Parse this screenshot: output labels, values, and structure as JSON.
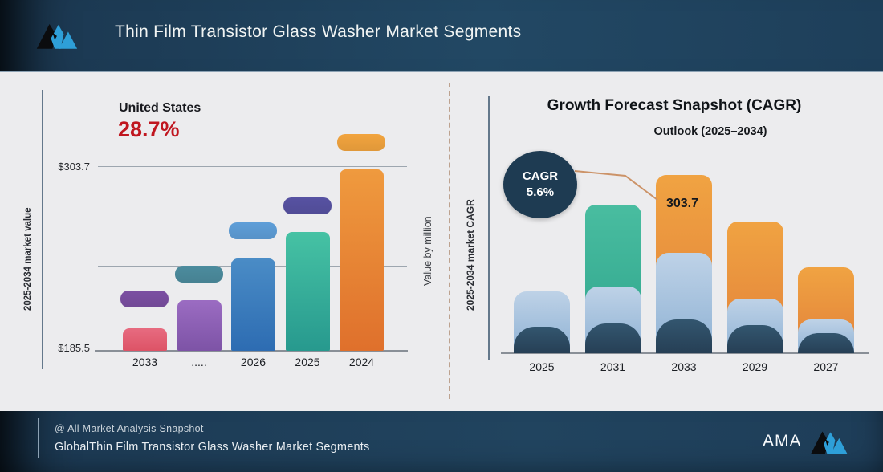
{
  "header": {
    "title": "Thin Film Transistor Glass Washer Market Segments",
    "logo": "AMA mountain logo"
  },
  "left_panel": {
    "country_label": "United States",
    "country_value": "28.7%",
    "y_axis_title": "2025-2034 market value",
    "tick_top": "$303.7",
    "tick_bottom": "$185.5",
    "secondary_axis_title": "Value by million"
  },
  "right_panel": {
    "title": "Growth Forecast Snapshot (CAGR)",
    "subtitle": "Outlook (2025–2034)",
    "y_axis_title": "2025-2034 market CAGR",
    "badge_title": "CAGR",
    "badge_value": "5.6%",
    "peak_label": "303.7"
  },
  "footer": {
    "credit": "@ All Market Analysis Snapshot",
    "caption": "GlobalThin Film Transistor Glass Washer Market Segments",
    "brand": "AMA"
  },
  "colors": {
    "background_navy": "#1f3d57",
    "panel_gray": "#ececee",
    "accent_red": "#c0161f",
    "accent_orange": "#e8883c",
    "accent_teal": "#3cb49a",
    "badge_navy": "#1e3b52",
    "logo_blue": "#2e9fd8",
    "connector_tan": "#cc9368"
  },
  "chart_data": [
    {
      "type": "bar",
      "title": "United States 2025-2034 market value",
      "highlight": {
        "label": "United States",
        "value": "28.7%"
      },
      "categories": [
        "2033",
        ".....",
        "2026",
        "2025",
        "2024"
      ],
      "values": [
        200,
        218,
        245,
        262,
        302
      ],
      "cap_values": [
        224,
        240,
        268,
        284,
        325
      ],
      "unit": "USD million (read from axis)",
      "ylabel": "2025-2034 market value",
      "xlabel": "",
      "yticks": [
        185.5,
        303.7
      ],
      "ytick_labels": [
        "$185.5",
        "$303.7"
      ],
      "ylim": [
        185.5,
        335
      ],
      "grid": true,
      "legend": false,
      "bar_colors": [
        [
          "#e76b80",
          "#dd5366"
        ],
        [
          "#9b6cc2",
          "#7d53a6"
        ],
        [
          "#4a8cc6",
          "#2d6cb2"
        ],
        [
          "#46c2a4",
          "#27998e"
        ],
        [
          "#ef9a3e",
          "#df702c"
        ]
      ],
      "cap_colors": [
        "#7b4fa2",
        "#4c8c9e",
        "#5e9ed8",
        "#5752a2",
        "#f2a43e"
      ]
    },
    {
      "type": "stacked-bar",
      "title": "Growth Forecast Snapshot (CAGR)",
      "subtitle": "Outlook (2025–2034)",
      "categories": [
        "2025",
        "2031",
        "2033",
        "2029",
        "2027"
      ],
      "series": [
        {
          "name": "base",
          "values": [
            45,
            51,
            57,
            48,
            34
          ]
        },
        {
          "name": "mid",
          "values": [
            60,
            62,
            114,
            45,
            23
          ]
        },
        {
          "name": "top",
          "values": [
            0,
            140,
            132.7,
            131,
            89
          ]
        }
      ],
      "totals": [
        105,
        253,
        303.7,
        224,
        146
      ],
      "annotations": [
        {
          "category": "2033",
          "label": "303.7"
        }
      ],
      "cagr": "5.6%",
      "ylabel": "2025-2034 market CAGR",
      "grid": false,
      "legend": false,
      "segment_colors": {
        "base": [
          "#33566f",
          "#263f55"
        ],
        "mid": [
          "#bed2e7",
          "#8fb2d4"
        ],
        "top_teal": [
          "#49bda0",
          "#2fa48c"
        ],
        "top_orange": [
          "#f0a342",
          "#e2813a"
        ]
      },
      "top_color_keys": [
        null,
        "top_teal",
        "top_orange",
        "top_orange",
        "top_orange"
      ]
    }
  ]
}
